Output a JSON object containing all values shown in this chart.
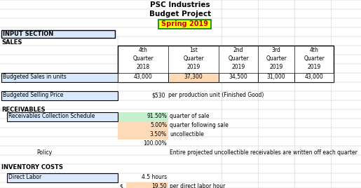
{
  "title1": "PSC Industries",
  "title2": "Budget Project",
  "title3": "Spring 2019",
  "title3_bg": "#FFFF00",
  "title3_border": "#008000",
  "title3_color": "#CC0000",
  "bg_color": "#FFFFFF",
  "grid_color": "#C0C0C0",
  "cell_blue": "#DAE8FC",
  "cell_orange": "#FFDAB9",
  "cell_green": "#C6EFCE",
  "border_color": "#000000",
  "col_headers": [
    "4th\nQuarter\n2018",
    "1st\nQuarter\n2019",
    "2nd\nQuarter\n2019",
    "3rd\nQuarter\n2019",
    "4th\nQuarter\n2019"
  ],
  "sales_values": [
    "43,000",
    "37,300",
    "34,500",
    "31,000",
    "43,000"
  ],
  "highlight_col": 1,
  "selling_price": "$530",
  "selling_price_desc": "per production unit (Finished Good)",
  "recv_rows": [
    [
      "91.50%",
      "quarter of sale",
      "#C6EFCE"
    ],
    [
      "5.00%",
      "quarter following sale",
      "#FFDAB9"
    ],
    [
      "3.50%",
      "uncollectible",
      "#FFDAB9"
    ]
  ],
  "recv_total": "100.00%",
  "policy_label": "Policy",
  "policy_text": "Entire projected uncollectible receivables are written off each quarter",
  "dl_hours": "4.5",
  "dl_rate": "19.50",
  "dl_rate_desc": "per direct labor hour",
  "fs_title": 7.5,
  "fs_body": 5.5,
  "fs_section": 6.0
}
